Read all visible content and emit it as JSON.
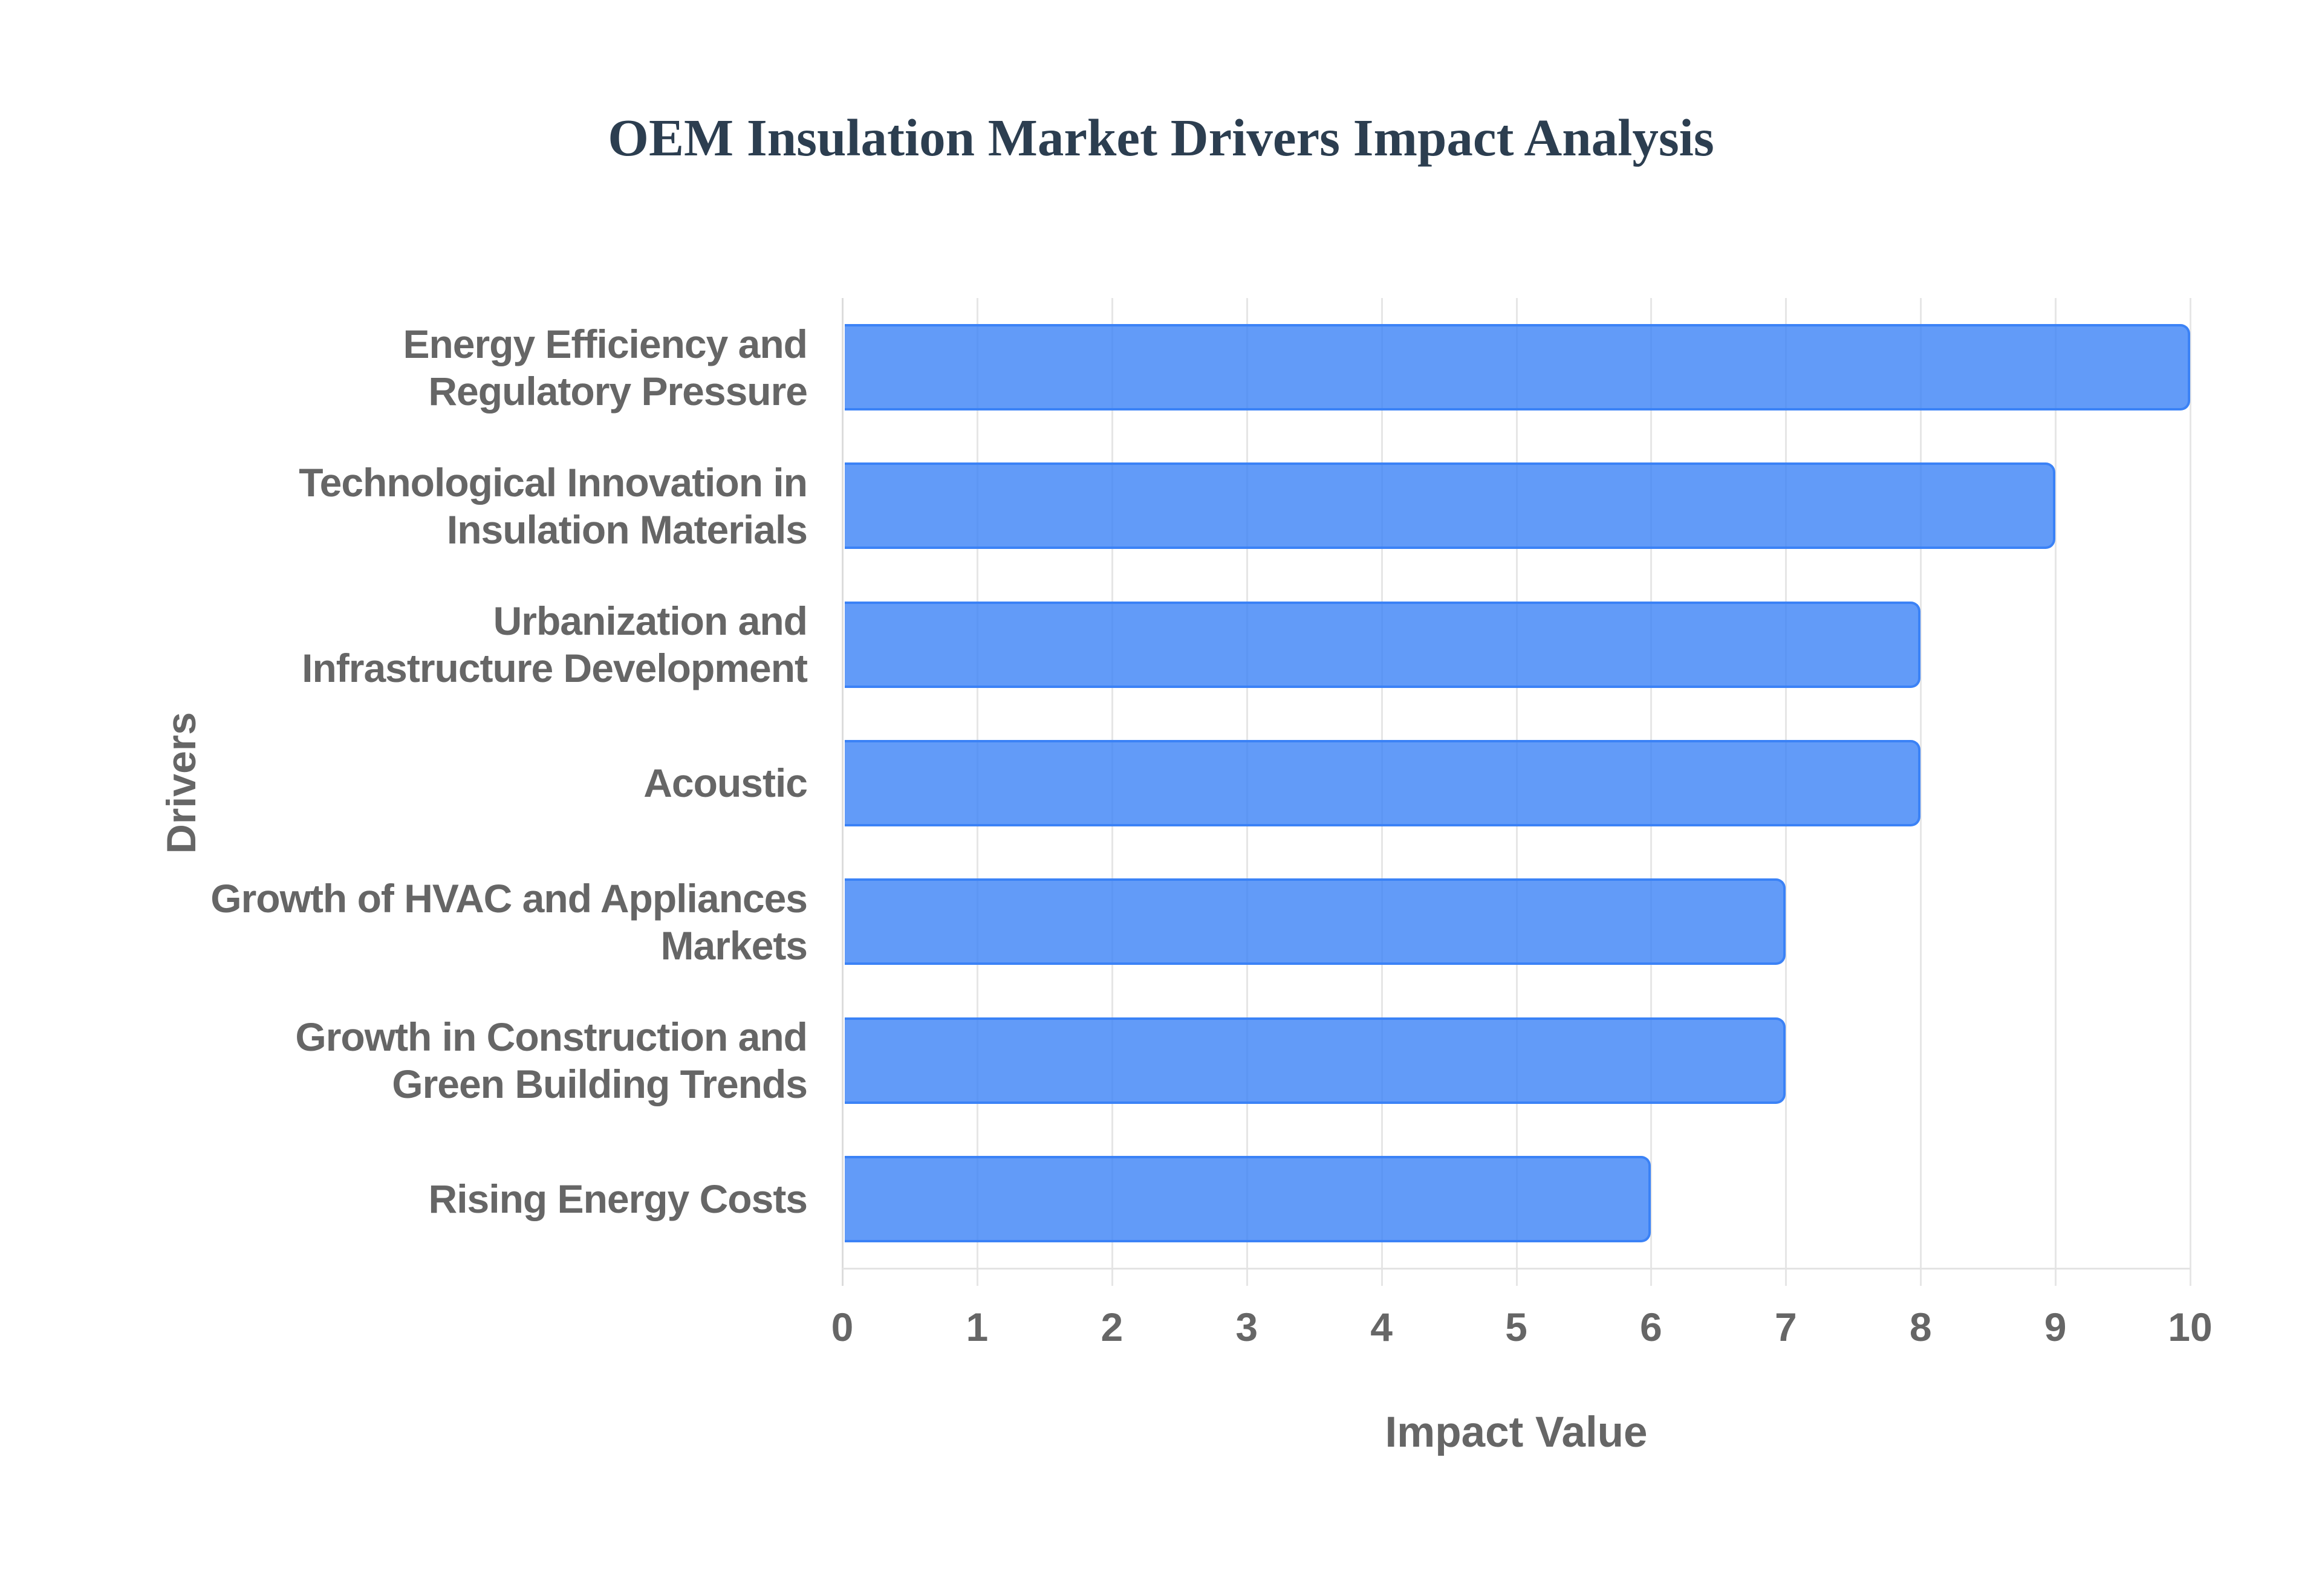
{
  "title": "OEM Insulation Market Drivers Impact Analysis",
  "colors": {
    "title": "#2c3e50",
    "bar_fill": "rgba(59,130,246,0.8)",
    "bar_border": "#3b82f6",
    "axis_text": "#666666",
    "grid": "#e6e6e6"
  },
  "axes": {
    "x_title": "Impact Value",
    "y_title": "Drivers",
    "x_ticks": [
      "0",
      "1",
      "2",
      "3",
      "4",
      "5",
      "6",
      "7",
      "8",
      "9",
      "10"
    ]
  },
  "chart_data": {
    "type": "bar",
    "orientation": "horizontal",
    "title": "OEM Insulation Market Drivers Impact Analysis",
    "xlabel": "Impact Value",
    "ylabel": "Drivers",
    "xlim": [
      0,
      10
    ],
    "grid": true,
    "legend": null,
    "categories": [
      "Energy Efficiency and Regulatory Pressure",
      "Technological Innovation in Insulation Materials",
      "Urbanization and Infrastructure Development",
      "Acoustic",
      "Growth of HVAC and Appliances Markets",
      "Growth in Construction and Green Building Trends",
      "Rising Energy Costs"
    ],
    "values": [
      10,
      9,
      8,
      8,
      7,
      7,
      6
    ]
  },
  "rows": [
    {
      "lines": [
        "Energy Efficiency and",
        "Regulatory Pressure"
      ],
      "value": 10
    },
    {
      "lines": [
        "Technological Innovation in",
        "Insulation Materials"
      ],
      "value": 9
    },
    {
      "lines": [
        "Urbanization and",
        "Infrastructure Development"
      ],
      "value": 8
    },
    {
      "lines": [
        "Acoustic"
      ],
      "value": 8
    },
    {
      "lines": [
        "Growth of HVAC and Appliances",
        "Markets"
      ],
      "value": 7
    },
    {
      "lines": [
        "Growth in Construction and",
        "Green Building Trends"
      ],
      "value": 7
    },
    {
      "lines": [
        "Rising Energy Costs"
      ],
      "value": 6
    }
  ]
}
